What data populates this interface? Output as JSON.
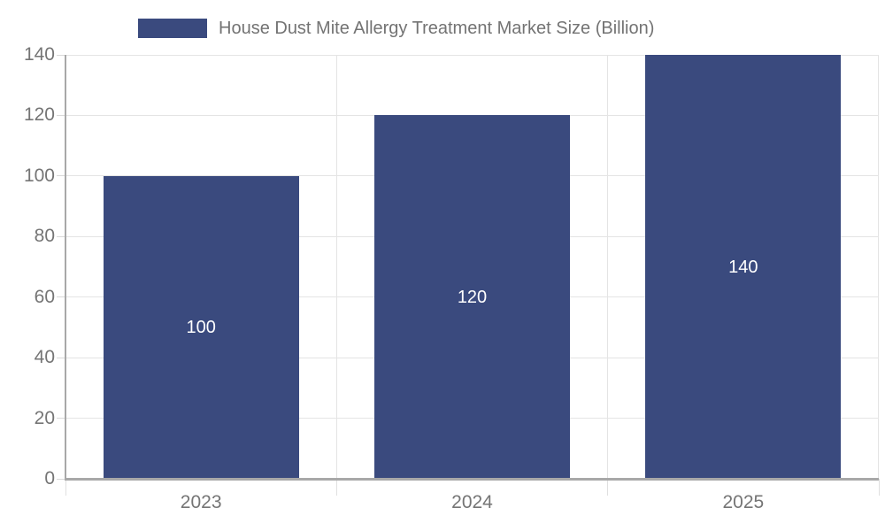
{
  "legend": {
    "label": "House Dust Mite Allergy Treatment Market Size (Billion)",
    "swatch_color": "#3a4a7e"
  },
  "chart_data": {
    "type": "bar",
    "title": "House Dust Mite Allergy Treatment Market Size (Billion)",
    "categories": [
      "2023",
      "2024",
      "2025"
    ],
    "values": [
      100,
      120,
      140
    ],
    "bar_labels": [
      "100",
      "120",
      "140"
    ],
    "xlabel": "",
    "ylabel": "",
    "ylim": [
      0,
      140
    ],
    "yticks": [
      0,
      20,
      40,
      60,
      80,
      100,
      120,
      140
    ],
    "grid": true,
    "legend_position": "top-left",
    "colors": {
      "bar": "#3a4a7e",
      "bar_label_text": "#ffffff",
      "axis_line": "#a8a8a8",
      "gridline": "#e4e4e4",
      "axis_label": "#757575",
      "legend_text": "#737373",
      "background": "#ffffff"
    }
  }
}
